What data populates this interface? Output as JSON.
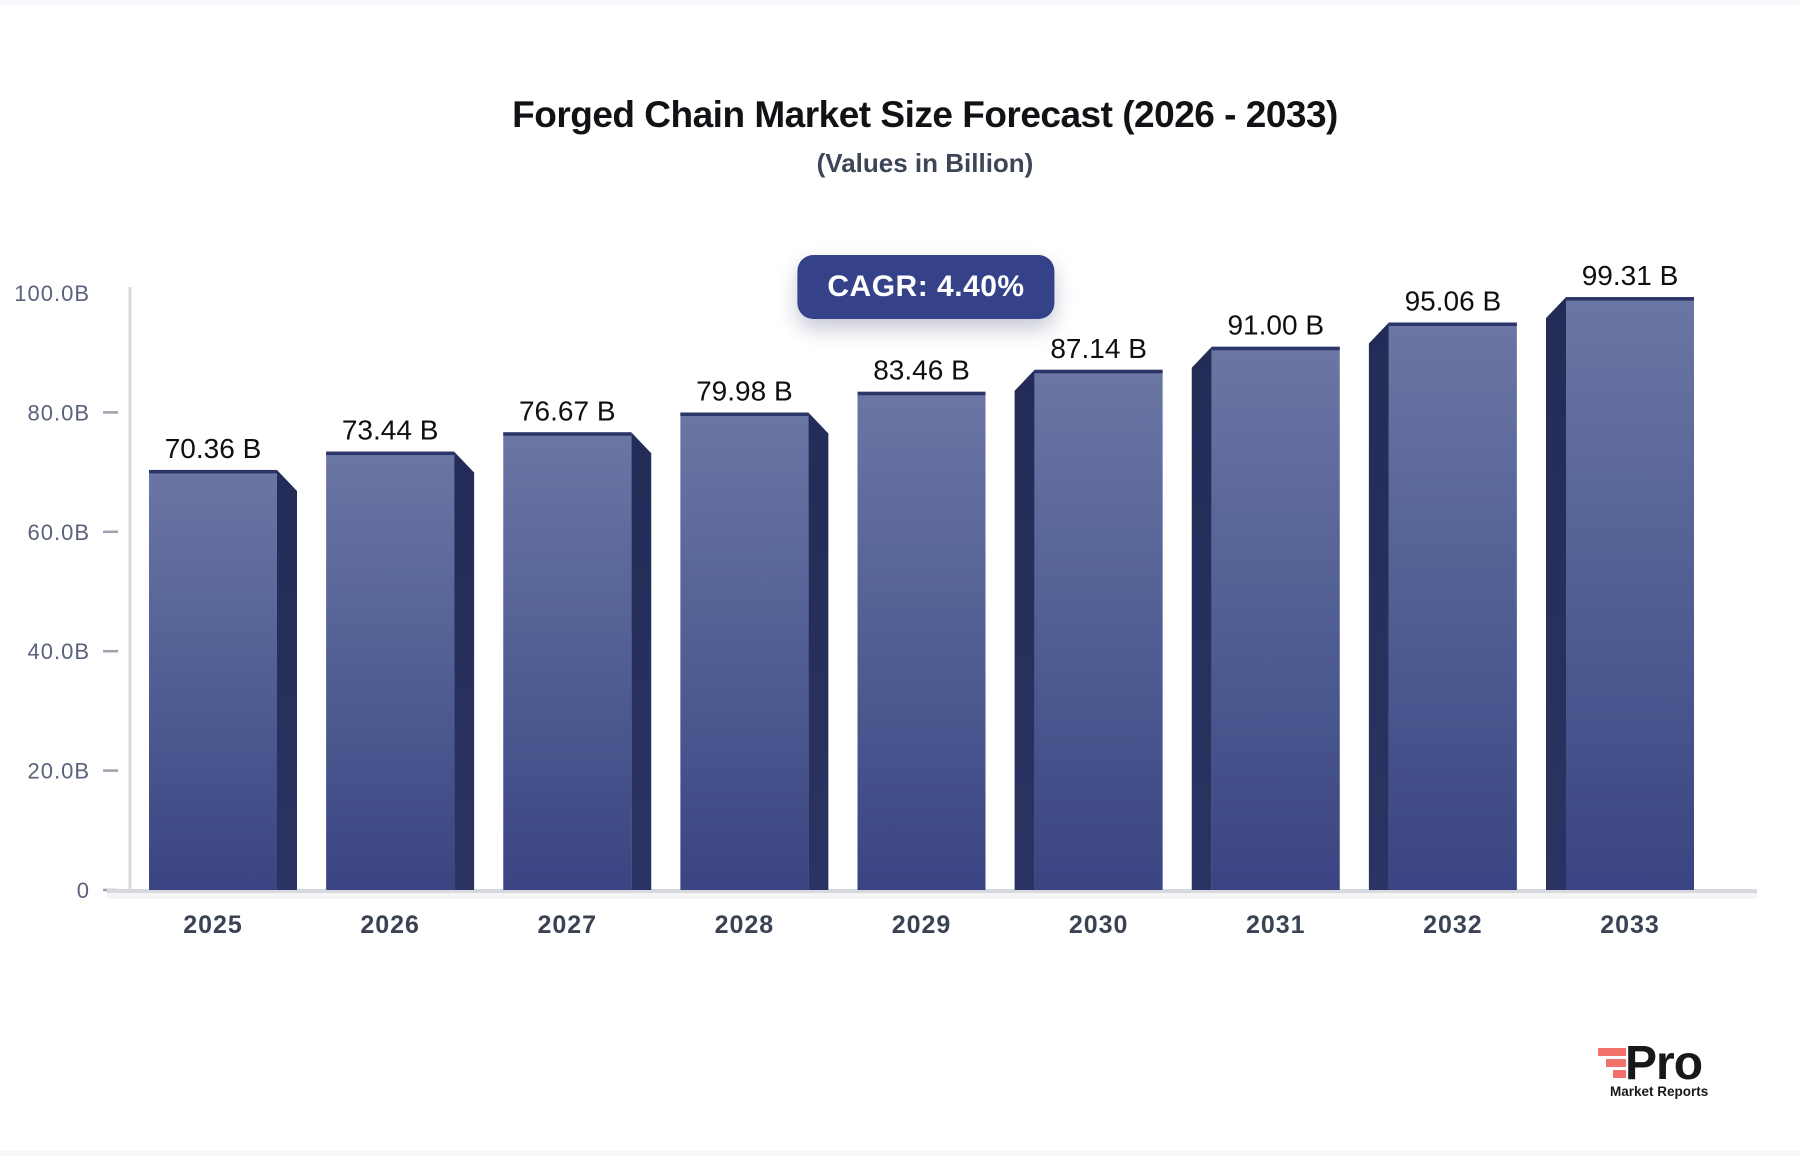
{
  "header": {
    "title": "Forged Chain Market Size Forecast (2026 - 2033)",
    "subtitle": "(Values in Billion)",
    "cagr_label": "CAGR: 4.40%"
  },
  "chart_data": {
    "type": "bar",
    "title": "Forged Chain Market Size Forecast (2026 - 2033)",
    "subtitle": "(Values in Billion)",
    "cagr": "4.40%",
    "categories": [
      "2025",
      "2026",
      "2027",
      "2028",
      "2029",
      "2030",
      "2031",
      "2032",
      "2033"
    ],
    "values": [
      70.36,
      73.44,
      76.67,
      79.98,
      83.46,
      87.14,
      91.0,
      95.06,
      99.31
    ],
    "value_labels": [
      "70.36 B",
      "73.44 B",
      "76.67 B",
      "79.98 B",
      "83.46 B",
      "87.14 B",
      "91.00 B",
      "95.06 B",
      "99.31 B"
    ],
    "unit": "Billion",
    "xlabel": "",
    "ylabel": "",
    "ylim": [
      0,
      100
    ],
    "y_tick_labels": [
      "0",
      "20.0B",
      "40.0B",
      "60.0B",
      "80.0B",
      "100.0B"
    ],
    "grid": false,
    "legend": false,
    "bar_style": "3d-perspective-center"
  },
  "colors": {
    "bar_front_top": "#6b76a4",
    "bar_front_mid": "#4f5c92",
    "bar_front_bottom": "#3a4482",
    "bar_side_dark": "#232b57",
    "bar_side": "#2b3362",
    "bar_top_edge": "#2c3567",
    "badge_bg": "#35428a",
    "badge_text": "#ffffff",
    "axis_line": "#d7d9de",
    "tick_dash": "#9ca2af",
    "y_tick_text": "#59627a",
    "x_label_text": "#3a4254",
    "value_label_text": "#0d0f13",
    "accent_red": "#f4716b",
    "page_bg": "#f7f8fb",
    "card_bg": "#ffffff"
  },
  "logo": {
    "name": "Pro",
    "caption": "Market Reports"
  }
}
